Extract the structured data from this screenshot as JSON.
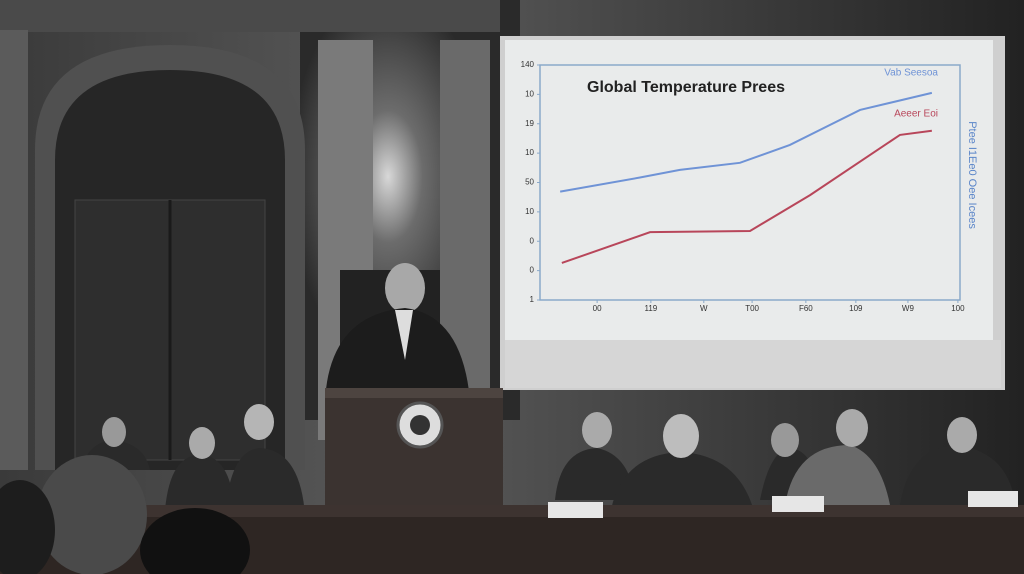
{
  "chart_data": {
    "type": "line",
    "title": "Global Temperature Prees",
    "y_label": "Ptee I1Ee0 Oee Icees",
    "xlim": [
      0,
      100
    ],
    "xticks": [
      {
        "value": 13.6,
        "label": "00"
      },
      {
        "value": 26.4,
        "label": "119"
      },
      {
        "value": 39,
        "label": "W"
      },
      {
        "value": 50.5,
        "label": "T00"
      },
      {
        "value": 63.3,
        "label": "F60"
      },
      {
        "value": 75.2,
        "label": "109"
      },
      {
        "value": 87.6,
        "label": "W9"
      },
      {
        "value": 99.5,
        "label": "100"
      }
    ],
    "ylim": [
      0,
      8
    ],
    "yticks": [
      {
        "value": 0,
        "label": "1"
      },
      {
        "value": 1,
        "label": "0"
      },
      {
        "value": 2,
        "label": "0"
      },
      {
        "value": 3,
        "label": "10"
      },
      {
        "value": 4,
        "label": "50"
      },
      {
        "value": 5,
        "label": "10"
      },
      {
        "value": 6,
        "label": "19"
      },
      {
        "value": 7,
        "label": "10"
      },
      {
        "value": 8,
        "label": "140"
      }
    ],
    "series": [
      {
        "name": "Vab Seesoa",
        "color": "#6f93d6",
        "x": [
          4.8,
          23.8,
          33.3,
          47.6,
          59.5,
          76.2,
          93.3
        ],
        "values": [
          3.69,
          4.17,
          4.43,
          4.67,
          5.28,
          6.47,
          7.05
        ]
      },
      {
        "name": "Aeeer Eoi",
        "color": "#b8465a",
        "x": [
          5.2,
          26.2,
          50,
          64.3,
          85.7,
          93.3
        ],
        "values": [
          1.26,
          2.31,
          2.35,
          3.57,
          5.62,
          5.76
        ]
      }
    ]
  }
}
